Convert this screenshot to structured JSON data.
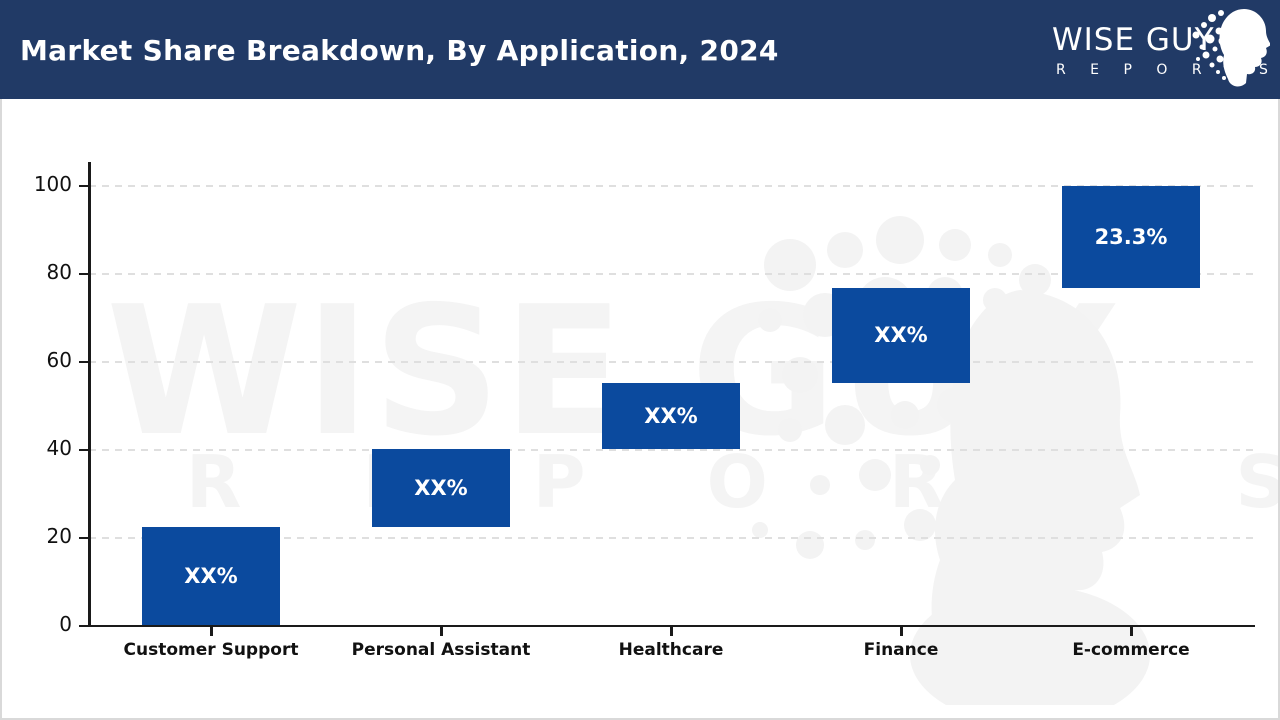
{
  "header": {
    "title": "Market Share Breakdown, By Application, 2024",
    "logo": {
      "line1": "WISE GUY",
      "line2": "REPORTS"
    }
  },
  "watermark": {
    "line1": "WISE GUY",
    "line2": "REPORTS"
  },
  "colors": {
    "header_bg": "#213A66",
    "bar": "#0B4A9E",
    "bar_label_text": "#FFFFFF",
    "grid": "#DFDFDF",
    "axis": "#1A1A1A",
    "tick_text": "#111111",
    "watermark": "#F4F4F4"
  },
  "chart_data": {
    "type": "bar",
    "subtype": "waterfall-floating-bars",
    "title": "Market Share Breakdown, By Application, 2024",
    "categories": [
      "Customer Support",
      "Personal Assistant",
      "Healthcare",
      "Finance",
      "E-commerce"
    ],
    "segments": [
      {
        "category": "Customer Support",
        "start": 0,
        "end": 22.3,
        "label": "XX%"
      },
      {
        "category": "Personal Assistant",
        "start": 22.3,
        "end": 40.2,
        "label": "XX%"
      },
      {
        "category": "Healthcare",
        "start": 40.2,
        "end": 55.2,
        "label": "XX%"
      },
      {
        "category": "Finance",
        "start": 55.2,
        "end": 76.7,
        "label": "XX%"
      },
      {
        "category": "E-commerce",
        "start": 76.7,
        "end": 100,
        "label": "23.3%"
      }
    ],
    "yticks": [
      0,
      20,
      40,
      60,
      80,
      100
    ],
    "ylim": [
      0,
      105
    ],
    "xlabel": "",
    "ylabel": "",
    "grid": "horizontal-dashed",
    "legend": "none"
  }
}
